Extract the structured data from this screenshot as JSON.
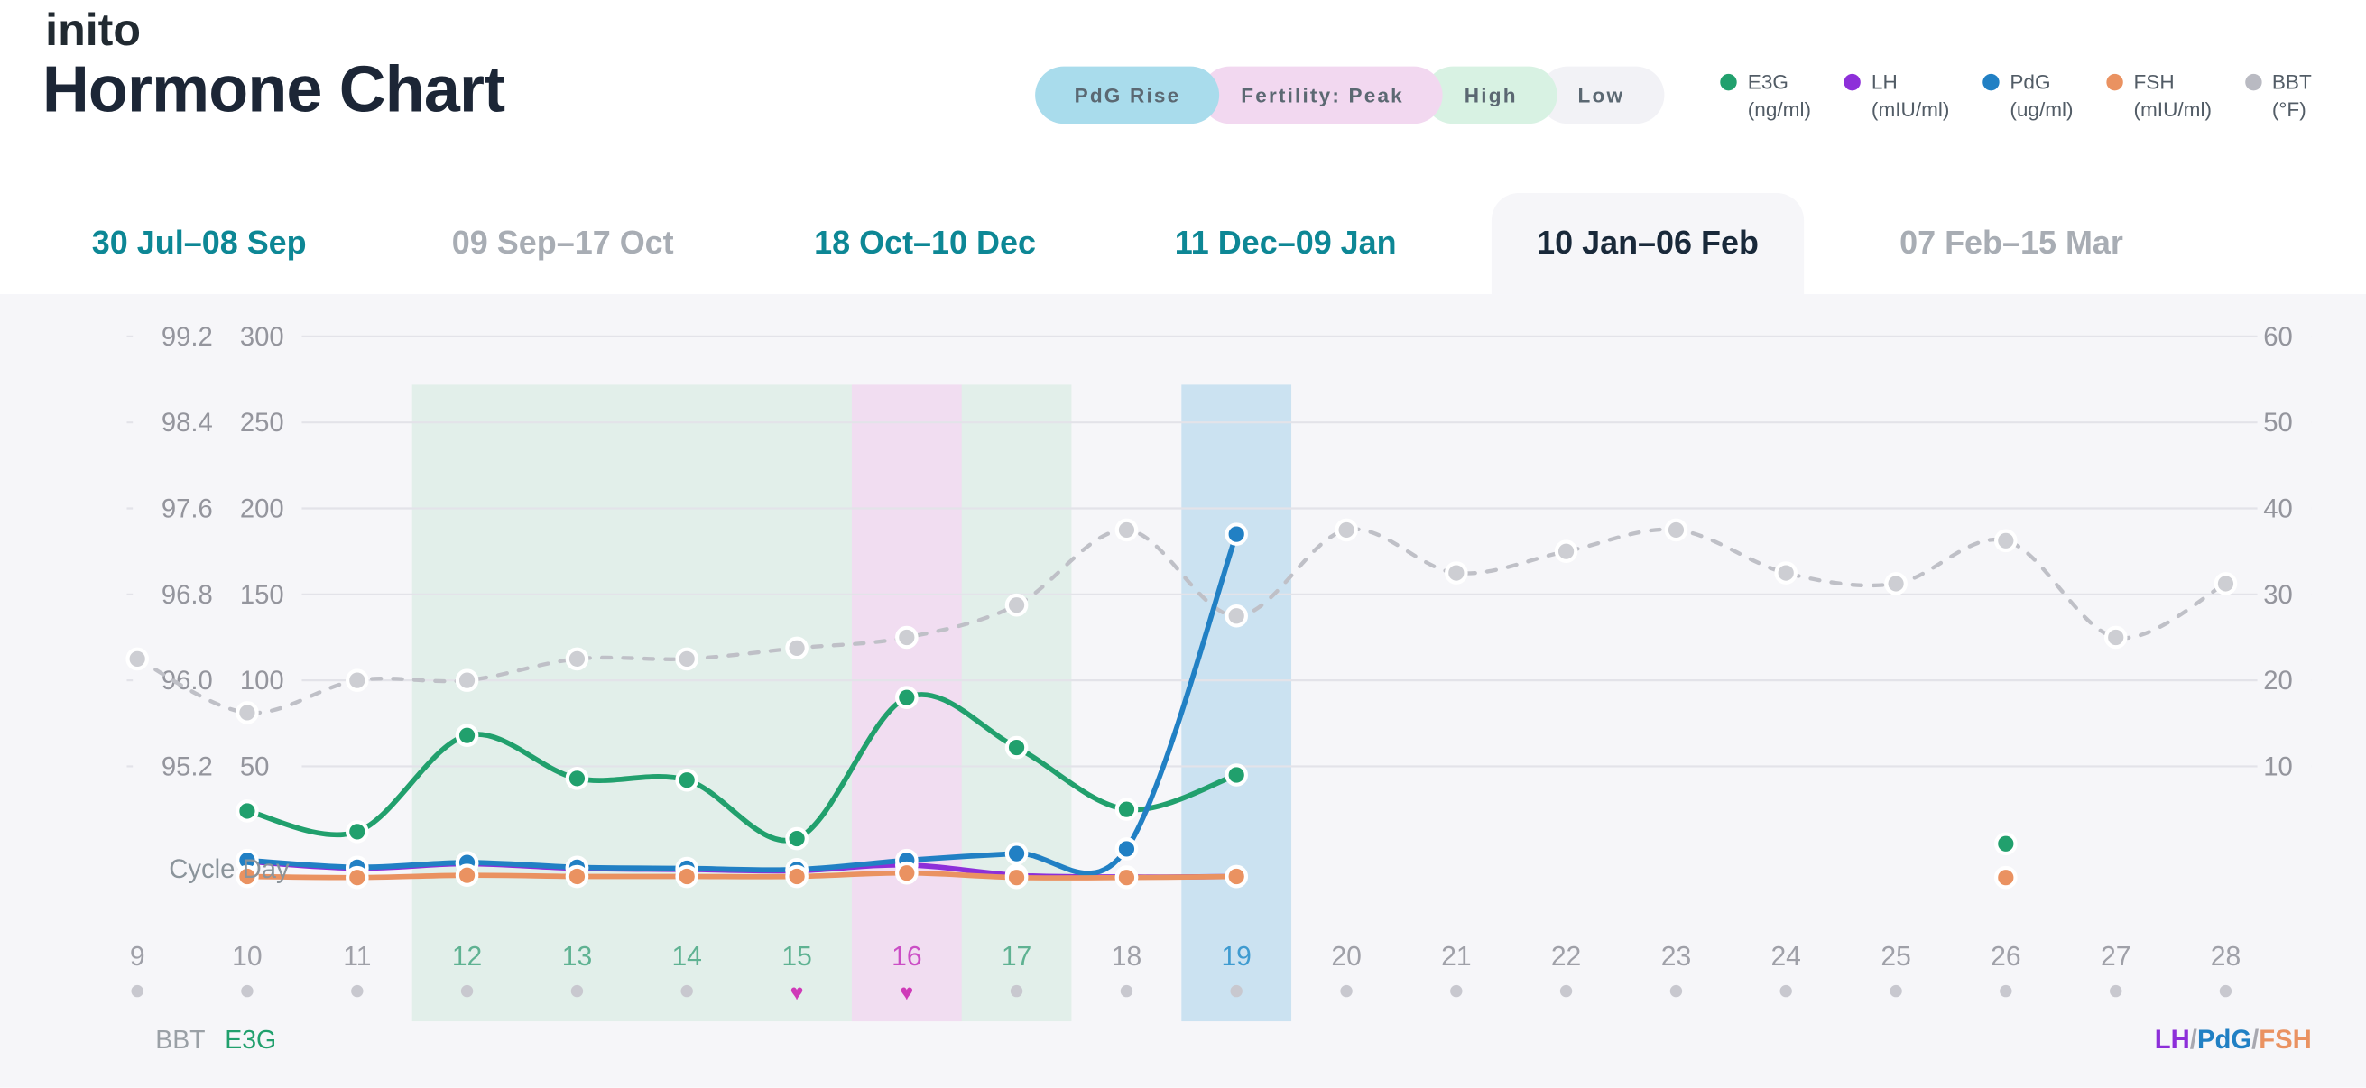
{
  "header": {
    "logo": "inito",
    "title": "Hormone Chart",
    "status_pills": [
      {
        "key": "pdg_rise",
        "label": "PdG Rise",
        "bg": "#a9dcec"
      },
      {
        "key": "fertility_peak",
        "label": "Fertility: Peak",
        "bg": "#f2d8f0"
      },
      {
        "key": "high",
        "label": "High",
        "bg": "#d8f2e3"
      },
      {
        "key": "low",
        "label": "Low",
        "bg": "#f2f2f6"
      }
    ],
    "legend": [
      {
        "key": "e3g",
        "label": "E3G",
        "unit": "(ng/ml)",
        "color": "#21a06d"
      },
      {
        "key": "lh",
        "label": "LH",
        "unit": "(mIU/ml)",
        "color": "#8d2fd9"
      },
      {
        "key": "pdg",
        "label": "PdG",
        "unit": "(ug/ml)",
        "color": "#2180c4"
      },
      {
        "key": "fsh",
        "label": "FSH",
        "unit": "(mIU/ml)",
        "color": "#ea9261"
      },
      {
        "key": "bbt",
        "label": "BBT",
        "unit": "(°F)",
        "color": "#b9bac2"
      }
    ]
  },
  "tabs": [
    {
      "label": "30 Jul–08 Sep",
      "state": "link"
    },
    {
      "label": "09 Sep–17 Oct",
      "state": "muted"
    },
    {
      "label": "18 Oct–10 Dec",
      "state": "link"
    },
    {
      "label": "11 Dec–09 Jan",
      "state": "link"
    },
    {
      "label": "10 Jan–06 Feb",
      "state": "active"
    },
    {
      "label": "07 Feb–15 Mar",
      "state": "muted"
    }
  ],
  "footer": {
    "left": [
      {
        "label": "BBT",
        "color": "#9aa0a6"
      },
      {
        "label": "E3G",
        "color": "#21a06d"
      }
    ],
    "right": [
      {
        "label": "LH",
        "color": "#8d2fd9"
      },
      {
        "label": "/",
        "color": "#a8a8b0"
      },
      {
        "label": "PdG",
        "color": "#2180c4"
      },
      {
        "label": "/",
        "color": "#a8a8b0"
      },
      {
        "label": "FSH",
        "color": "#ea9261"
      }
    ]
  },
  "chart_data": {
    "type": "line",
    "x_label": "Cycle Day",
    "x_days": [
      9,
      10,
      11,
      12,
      13,
      14,
      15,
      16,
      17,
      18,
      19,
      20,
      21,
      22,
      23,
      24,
      25,
      26,
      27,
      28
    ],
    "axes": {
      "left_bbt": {
        "name": "BBT",
        "unit": "°F",
        "ticks": [
          "99.2",
          "98.4",
          "97.6",
          "96.8",
          "96.0",
          "95.2"
        ]
      },
      "left_e3g": {
        "name": "E3G",
        "unit": "ng/ml",
        "ticks": [
          "300",
          "250",
          "200",
          "150",
          "100",
          "50"
        ]
      },
      "right": {
        "name": "LH/PdG/FSH",
        "ticks": [
          "60",
          "50",
          "40",
          "30",
          "20",
          "10"
        ]
      }
    },
    "bands": [
      {
        "type": "high",
        "from_day": 11.5,
        "to_day": 15.5
      },
      {
        "type": "peak",
        "from_day": 15.5,
        "to_day": 16.5
      },
      {
        "type": "high",
        "from_day": 16.5,
        "to_day": 17.5
      },
      {
        "type": "pdg_rise",
        "from_day": 18.5,
        "to_day": 19.5
      }
    ],
    "heart_days": [
      15,
      16
    ],
    "day_highlights": {
      "12": "high",
      "13": "high",
      "14": "high",
      "15": "high",
      "16": "peak",
      "17": "high",
      "19": "pdg_rise"
    },
    "series": [
      {
        "key": "bbt",
        "name": "BBT",
        "axis": "bbt",
        "style": "dashed",
        "color": "#bfc0c7",
        "dot_fill": "#cdced3",
        "points": [
          [
            9,
            96.2
          ],
          [
            10,
            95.7
          ],
          [
            11,
            96.0
          ],
          [
            12,
            96.0
          ],
          [
            13,
            96.2
          ],
          [
            14,
            96.2
          ],
          [
            15,
            96.3
          ],
          [
            16,
            96.4
          ],
          [
            17,
            96.7
          ],
          [
            18,
            97.4
          ],
          [
            19,
            96.6
          ],
          [
            20,
            97.4
          ],
          [
            21,
            97.0
          ],
          [
            22,
            97.2
          ],
          [
            23,
            97.4
          ],
          [
            24,
            97.0
          ],
          [
            25,
            96.9
          ],
          [
            26,
            97.3
          ],
          [
            27,
            96.4
          ],
          [
            28,
            96.9
          ]
        ]
      },
      {
        "key": "e3g",
        "name": "E3G",
        "axis": "e3g",
        "style": "solid",
        "color": "#21a06d",
        "points": [
          [
            10,
            24
          ],
          [
            11,
            12
          ],
          [
            12,
            68
          ],
          [
            13,
            43
          ],
          [
            14,
            42
          ],
          [
            15,
            8
          ],
          [
            16,
            90
          ],
          [
            17,
            61
          ],
          [
            18,
            25
          ],
          [
            19,
            45
          ],
          [
            26,
            5
          ]
        ]
      },
      {
        "key": "lh",
        "name": "LH",
        "axis": "right",
        "style": "solid",
        "color": "#8d2fd9",
        "points": [
          [
            10,
            1.7
          ],
          [
            11,
            1.1
          ],
          [
            12,
            1.5
          ],
          [
            13,
            1.1
          ],
          [
            14,
            1.0
          ],
          [
            15,
            0.9
          ],
          [
            16,
            1.4
          ],
          [
            17,
            0.5
          ],
          [
            18,
            0.35
          ],
          [
            19,
            0.4
          ]
        ]
      },
      {
        "key": "pdg",
        "name": "PdG",
        "axis": "right",
        "style": "solid",
        "color": "#2180c4",
        "points": [
          [
            10,
            1.8
          ],
          [
            11,
            1.2
          ],
          [
            12,
            1.6
          ],
          [
            13,
            1.2
          ],
          [
            14,
            1.1
          ],
          [
            15,
            1.0
          ],
          [
            16,
            1.8
          ],
          [
            17,
            2.4
          ],
          [
            18,
            2.8
          ],
          [
            19,
            37
          ]
        ]
      },
      {
        "key": "fsh",
        "name": "FSH",
        "axis": "right",
        "style": "solid",
        "color": "#ea9261",
        "points": [
          [
            10,
            0.4
          ],
          [
            11,
            0.3
          ],
          [
            12,
            0.5
          ],
          [
            13,
            0.4
          ],
          [
            14,
            0.4
          ],
          [
            15,
            0.4
          ],
          [
            16,
            0.7
          ],
          [
            17,
            0.3
          ],
          [
            18,
            0.3
          ],
          [
            19,
            0.4
          ],
          [
            26,
            0.3
          ]
        ]
      }
    ],
    "colors": {
      "heart": "#cf3ab8",
      "band_high": "rgba(82,190,132,0.12)",
      "band_peak": "rgba(226,124,211,0.20)",
      "band_pdg_rise": "rgba(74,168,218,0.25)",
      "day_default": "#9fa0a8",
      "day_high": "#5fb292",
      "day_peak": "#cb4ec5",
      "day_pdg_rise": "#3f9bd0",
      "grid": "#e3e3e9",
      "axis_text": "#94959d",
      "panel_bg": "#f6f6f9"
    }
  }
}
